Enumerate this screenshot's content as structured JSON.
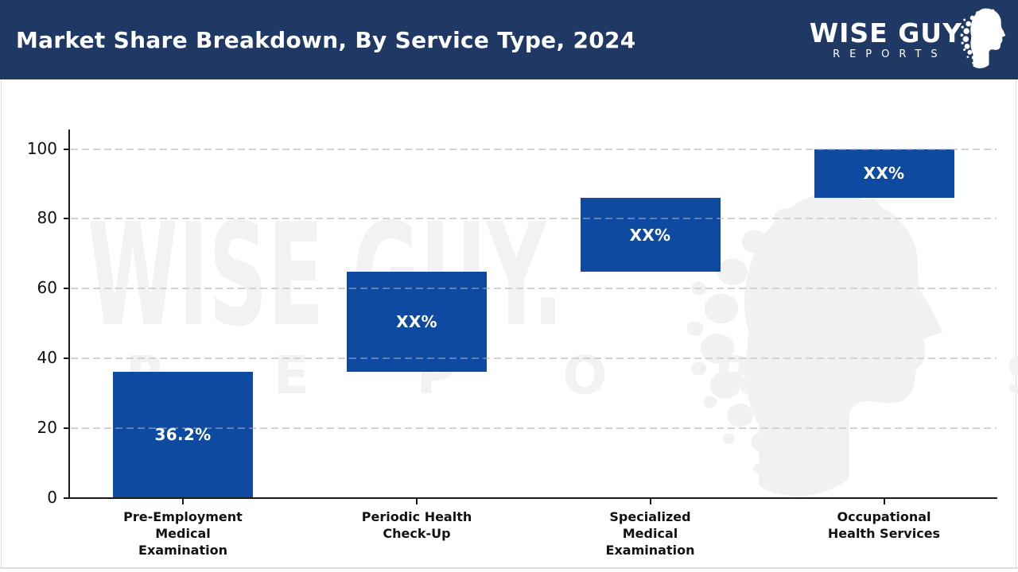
{
  "header": {
    "bg_color": "#203864",
    "title": "Market Share Breakdown, By Service Type, 2024",
    "logo": {
      "name": "WISE GUY",
      "sub": "REPORTS"
    }
  },
  "watermark": {
    "name": "WISE GUY.",
    "sub": "R E P O R T S"
  },
  "chart_data": {
    "type": "bar",
    "variant": "floating-waterfall-segments",
    "title": "Market Share Breakdown, By Service Type, 2024",
    "categories": [
      [
        "Pre-Employment",
        "Medical",
        "Examination"
      ],
      [
        "Periodic Health",
        "Check-Up"
      ],
      [
        "Specialized",
        "Medical",
        "Examination"
      ],
      [
        "Occupational",
        "Health Services"
      ]
    ],
    "segments": [
      {
        "base": 0,
        "top": 36.2,
        "label": "36.2%"
      },
      {
        "base": 36.2,
        "top": 64.8,
        "label": "XX%"
      },
      {
        "base": 64.8,
        "top": 86.0,
        "label": "XX%"
      },
      {
        "base": 86.0,
        "top": 100.0,
        "label": "XX%"
      }
    ],
    "ylim": [
      0,
      100
    ],
    "yticks": [
      0,
      20,
      40,
      60,
      80,
      100
    ],
    "grid": {
      "axis": "y",
      "style": "dashed",
      "color": "#cfcfcf"
    },
    "bar_color": "#0d4aa0",
    "bar_label_color": "#ffffff",
    "axis_color": "#1a1a1a",
    "tick_label_color": "#111111",
    "legend": null
  }
}
